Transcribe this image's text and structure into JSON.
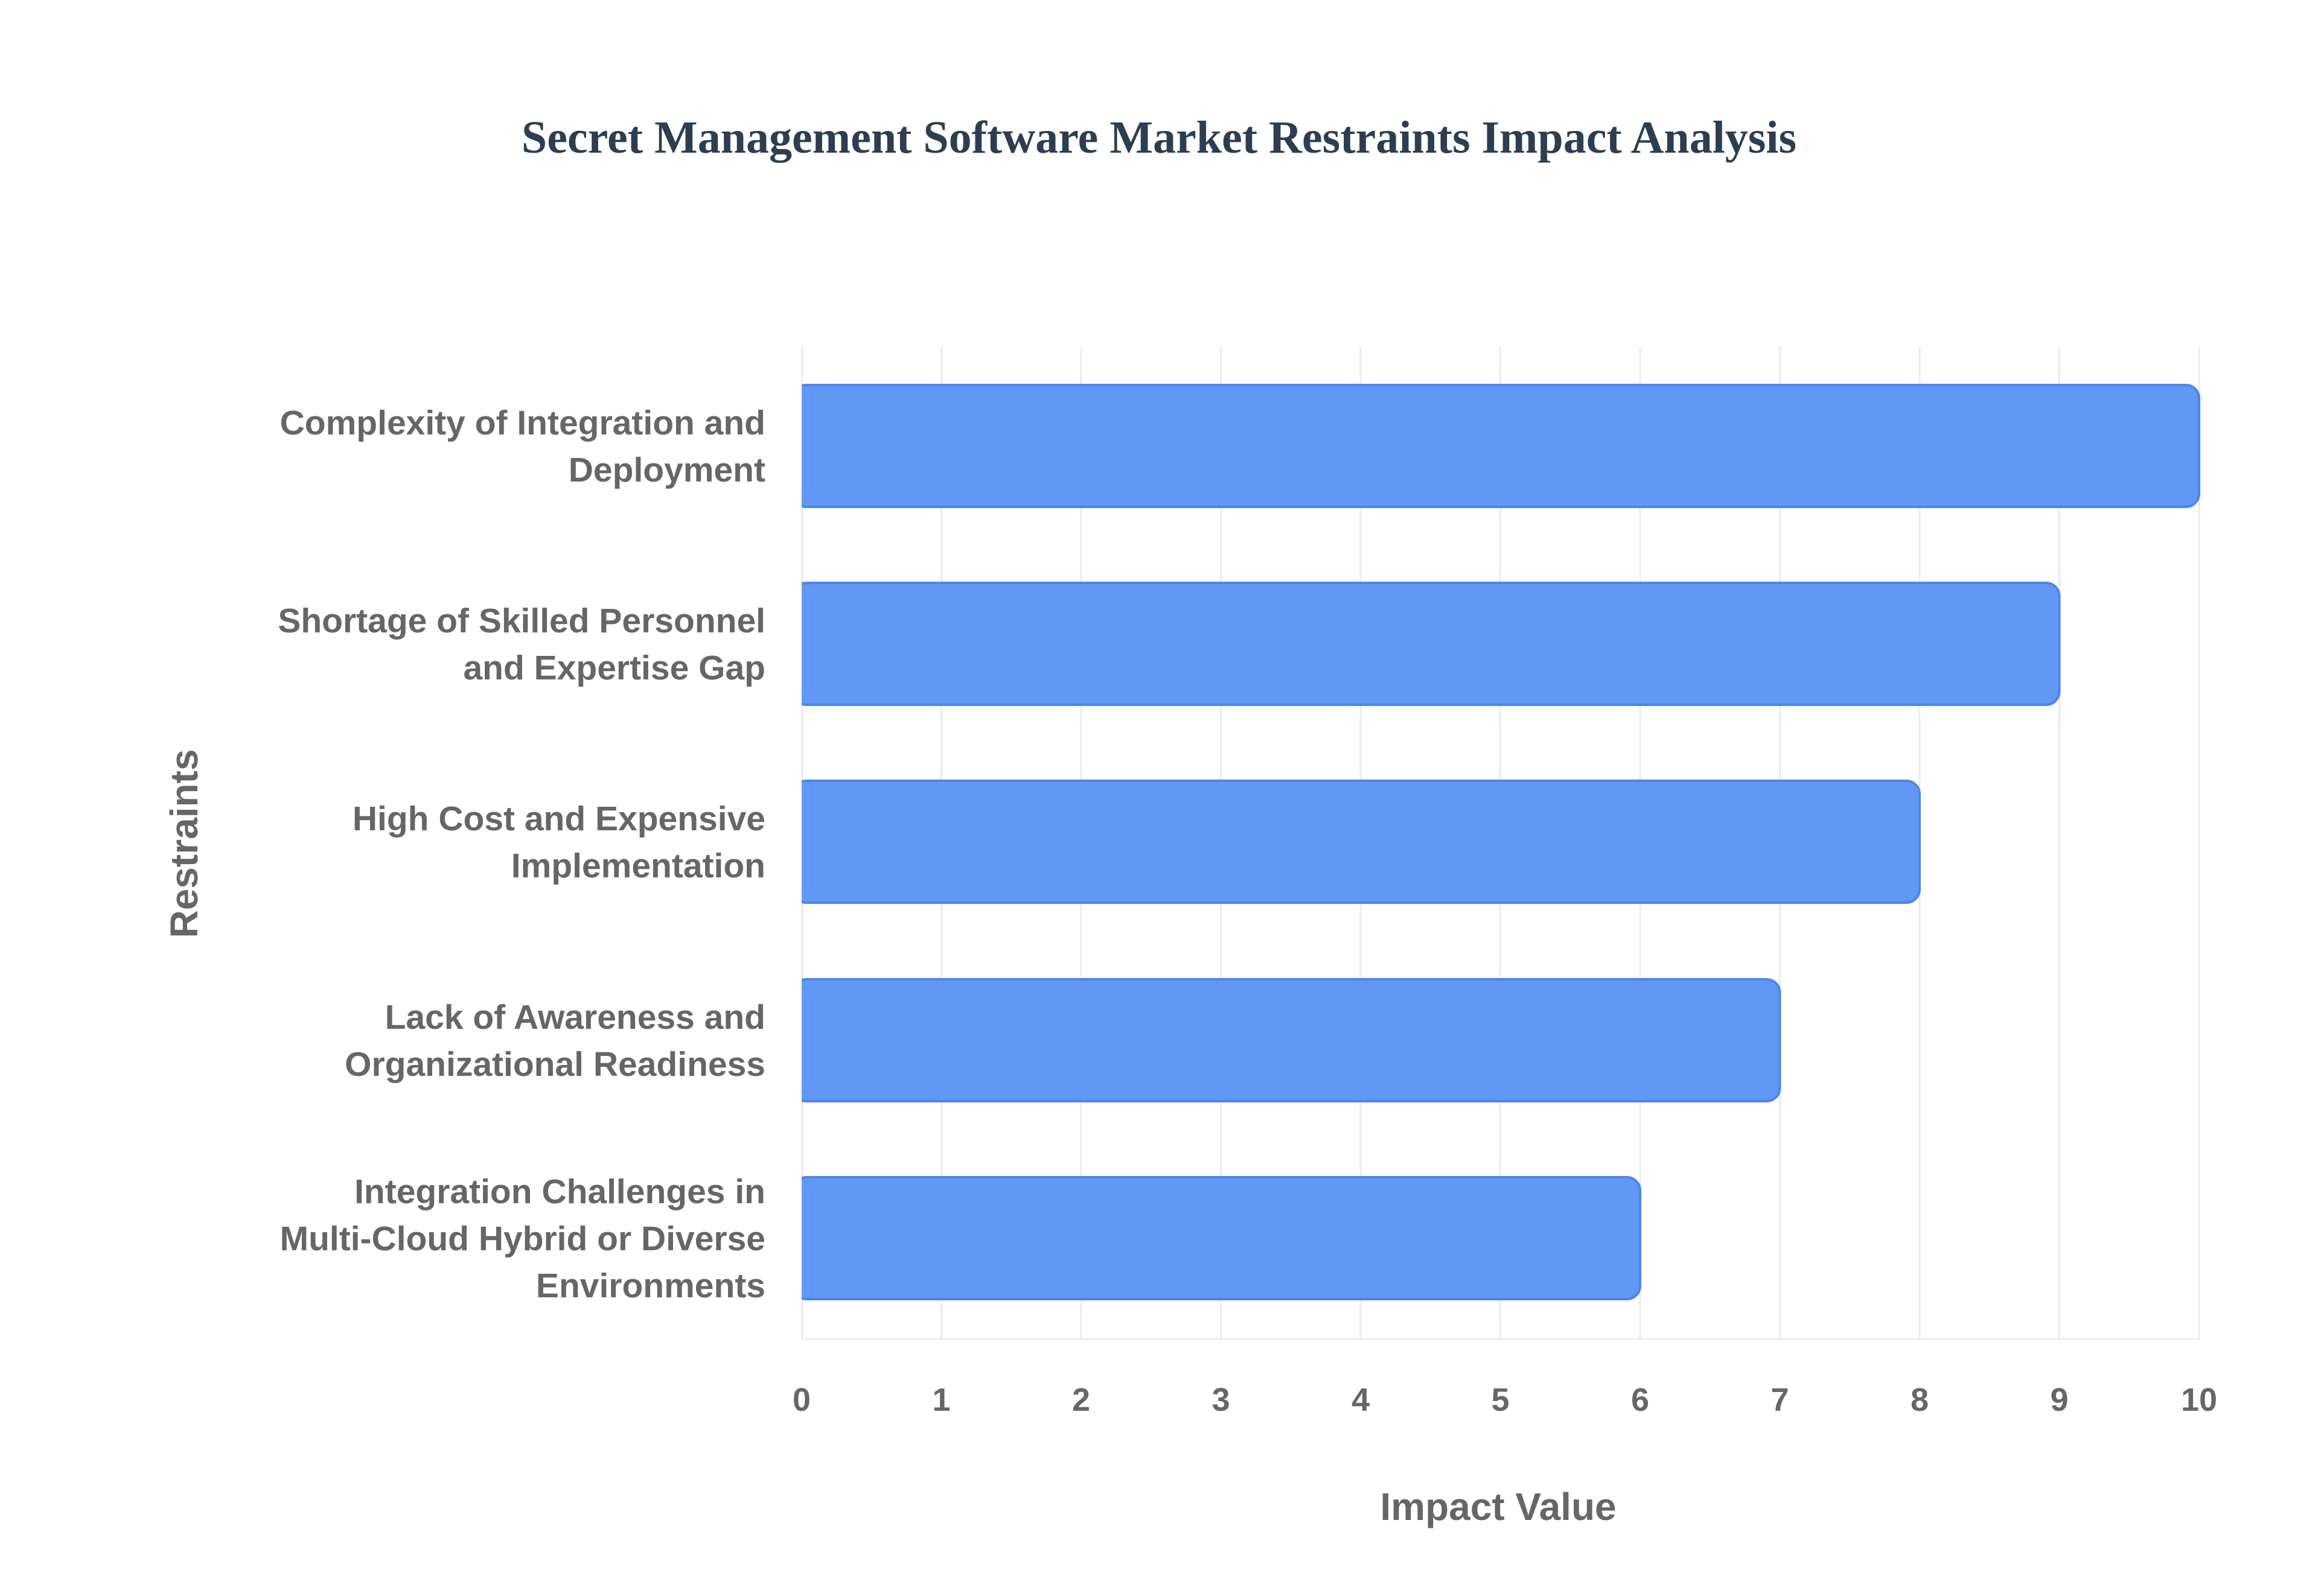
{
  "chart_data": {
    "type": "bar",
    "orientation": "horizontal",
    "title": "Secret Management Software Market Restraints Impact Analysis",
    "xlabel": "Impact Value",
    "ylabel": "Restraints",
    "categories": [
      "Complexity of Integration and Deployment",
      "Shortage of Skilled Personnel and Expertise Gap",
      "High Cost and Expensive Implementation",
      "Lack of Awareness and Organizational Readiness",
      "Integration Challenges in Multi-Cloud Hybrid or Diverse Environments"
    ],
    "category_lines": [
      [
        "Complexity of Integration and",
        "Deployment"
      ],
      [
        "Shortage of Skilled Personnel",
        "and Expertise Gap"
      ],
      [
        "High Cost and Expensive",
        "Implementation"
      ],
      [
        "Lack of Awareness and",
        "Organizational Readiness"
      ],
      [
        "Integration Challenges in",
        "Multi-Cloud Hybrid or Diverse",
        "Environments"
      ]
    ],
    "values": [
      10,
      9,
      8,
      7,
      6
    ],
    "xlim": [
      0,
      10
    ],
    "xticks": [
      "0",
      "1",
      "2",
      "3",
      "4",
      "5",
      "6",
      "7",
      "8",
      "9",
      "10"
    ],
    "grid": true,
    "bar_color": "#6198f5",
    "bar_edge_color": "#4a86ed"
  }
}
